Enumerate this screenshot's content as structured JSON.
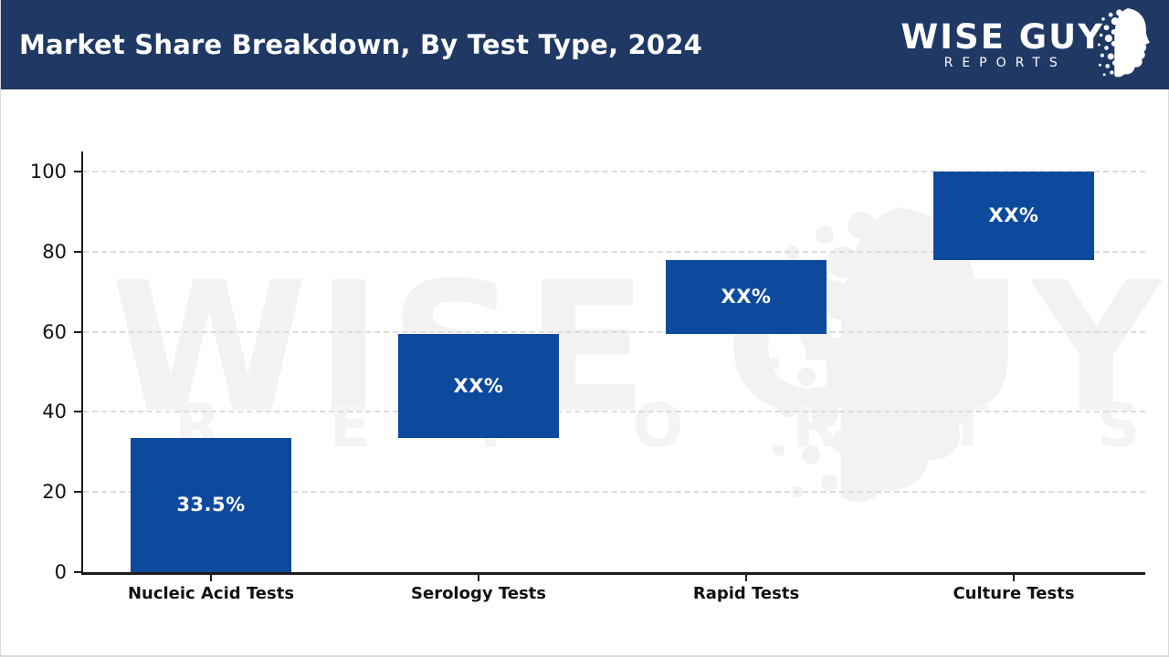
{
  "header": {
    "title": "Market Share Breakdown, By Test Type, 2024",
    "logo": {
      "line1": "WISE GUY",
      "line2": "REPORTS"
    }
  },
  "watermark": {
    "line1": "WISE GUY",
    "line2": "R E P O R T S"
  },
  "colors": {
    "header_bg": "#1f3864",
    "bar": "#0d4a9e",
    "bar_label": "#ffffff",
    "axis": "#1c1c1c",
    "grid": "#dcdcdc",
    "watermark": "#f2f2f2"
  },
  "chart_data": {
    "type": "bar",
    "subtype": "waterfall",
    "title": "Market Share Breakdown, By Test Type, 2024",
    "categories": [
      "Nucleic Acid Tests",
      "Serology Tests",
      "Rapid Tests",
      "Culture Tests"
    ],
    "segments": [
      {
        "category": "Nucleic Acid Tests",
        "start": 0,
        "end": 33.5,
        "label": "33.5%"
      },
      {
        "category": "Serology Tests",
        "start": 33.5,
        "end": 59.5,
        "label": "XX%"
      },
      {
        "category": "Rapid Tests",
        "start": 59.5,
        "end": 78,
        "label": "XX%"
      },
      {
        "category": "Culture Tests",
        "start": 78,
        "end": 100,
        "label": "XX%"
      }
    ],
    "xlabel": "",
    "ylabel": "",
    "yticks": [
      0,
      20,
      40,
      60,
      80,
      100
    ],
    "ylim": [
      0,
      105
    ],
    "grid": "horizontal-dashed",
    "legend": "none"
  }
}
